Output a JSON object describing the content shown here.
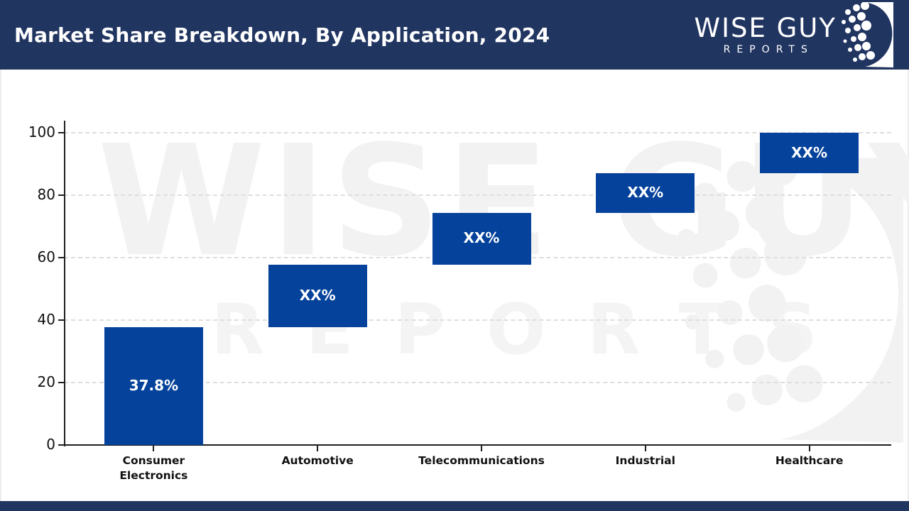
{
  "header": {
    "title": "Market Share Breakdown, By Application, 2024",
    "logo": {
      "line1": "WISE GUY",
      "line2": "REPORTS"
    }
  },
  "watermark": {
    "line1": "WISE GUY",
    "line2": "REPORTS"
  },
  "colors": {
    "header_bg": "#213561",
    "footer_bg": "#213561",
    "bar_fill": "#05429b",
    "bar_label_text": "#ffffff",
    "axis": "#1f1f1f",
    "gridline": "#dedede",
    "watermark": "#f2f2f2"
  },
  "chart_data": {
    "type": "bar",
    "subtype": "waterfall",
    "title": "Market Share Breakdown, By Application, 2024",
    "xlabel": "",
    "ylabel": "",
    "ylim": [
      0,
      104
    ],
    "yticks": [
      0,
      20,
      40,
      60,
      80,
      100
    ],
    "grid": "horizontal-dashed",
    "legend": "none",
    "categories": [
      "Consumer\nElectronics",
      "Automotive",
      "Telecommunications",
      "Industrial",
      "Healthcare"
    ],
    "segments": [
      {
        "category": "Consumer\nElectronics",
        "start": 0,
        "end": 37.8,
        "value": 37.8,
        "label": "37.8%"
      },
      {
        "category": "Automotive",
        "start": 37.8,
        "end": 57.8,
        "value": 20.0,
        "label": "XX%"
      },
      {
        "category": "Telecommunications",
        "start": 57.8,
        "end": 74.4,
        "value": 16.6,
        "label": "XX%"
      },
      {
        "category": "Industrial",
        "start": 74.4,
        "end": 87.0,
        "value": 12.6,
        "label": "XX%"
      },
      {
        "category": "Healthcare",
        "start": 87.0,
        "end": 100.0,
        "value": 13.0,
        "label": "XX%"
      }
    ]
  }
}
